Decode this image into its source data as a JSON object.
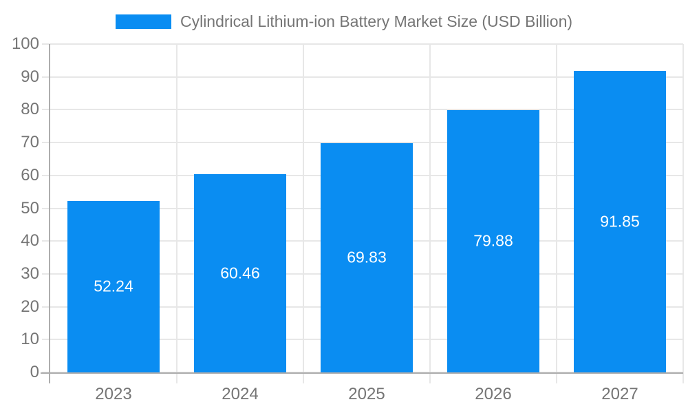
{
  "chart_data": {
    "type": "bar",
    "title": "Cylindrical Lithium-ion Battery Market Size (USD Billion)",
    "categories": [
      "2023",
      "2024",
      "2025",
      "2026",
      "2027"
    ],
    "values": [
      52.24,
      60.46,
      69.83,
      79.88,
      91.85
    ],
    "data_labels": [
      "52.24",
      "60.46",
      "69.83",
      "79.88",
      "91.85"
    ],
    "ytick_labels": [
      "0",
      "10",
      "20",
      "30",
      "40",
      "50",
      "60",
      "70",
      "80",
      "90",
      "100"
    ],
    "ylim": [
      0,
      100
    ],
    "ytick_step": 10,
    "xlabel": "",
    "ylabel": "",
    "grid": true,
    "legend_position": "top",
    "colors": {
      "bar": "#0A8DF2",
      "bar_label": "#FFFFFF",
      "grid": "#E7E7E7",
      "axis": "#ADADAD",
      "tick_text": "#757575",
      "legend_text": "#757575",
      "background": "#FFFFFF"
    }
  }
}
